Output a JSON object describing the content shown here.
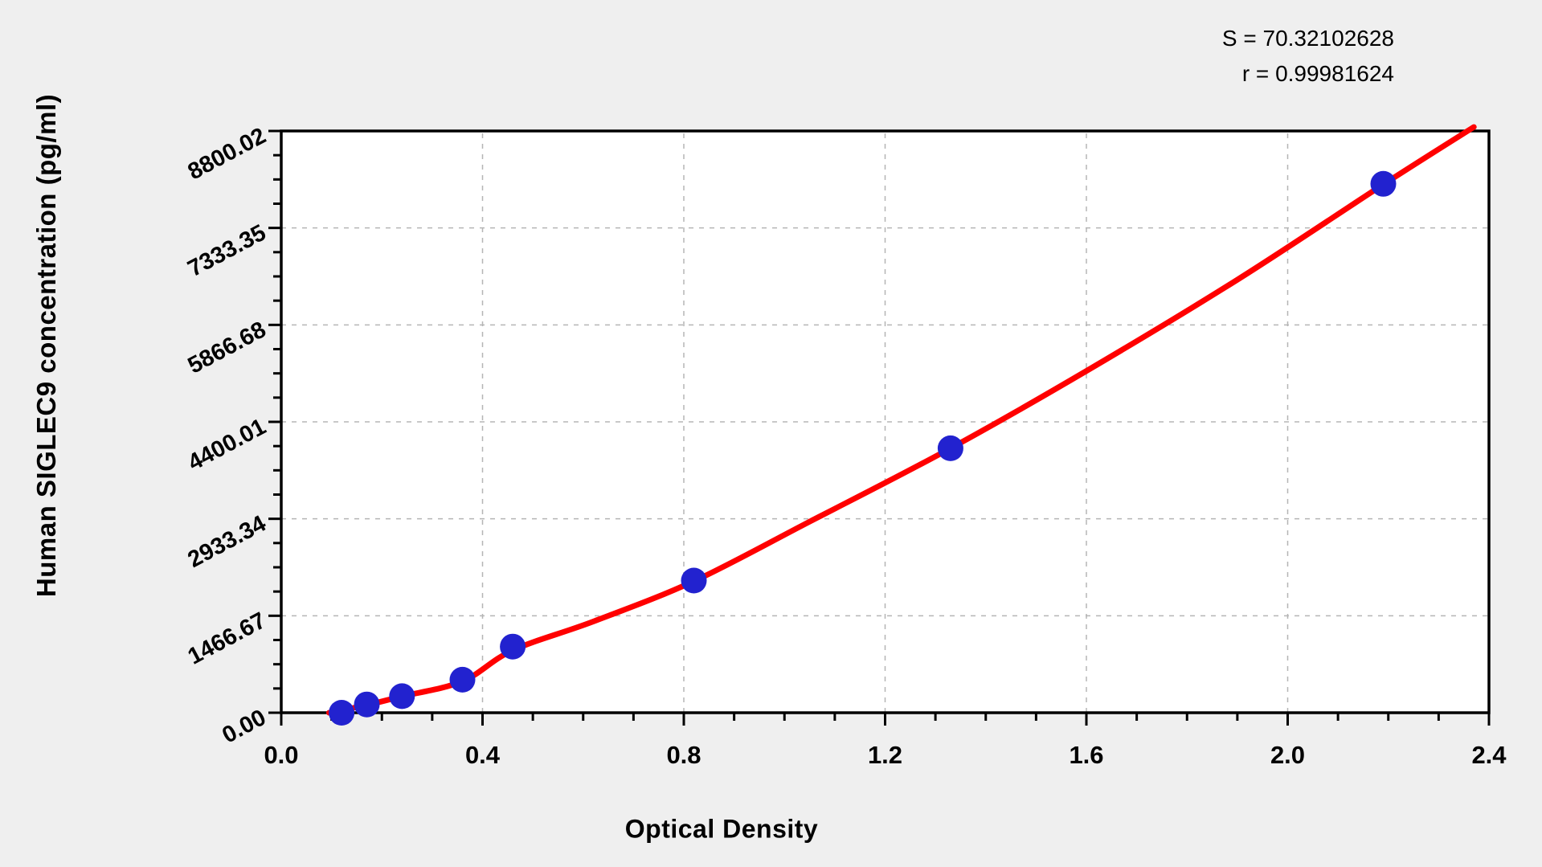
{
  "figure": {
    "stats": {
      "s_label": "S = 70.32102628",
      "r_label": "r = 0.99981624"
    },
    "colors": {
      "background": "#efefef",
      "plot_background": "#ffffff",
      "curve": "#ff0000",
      "points": "#2222cf",
      "grid": "#b5b5b5",
      "axis": "#000000",
      "text": "#000000"
    }
  },
  "chart_data": {
    "type": "scatter",
    "title": "",
    "xlabel": "Optical Density",
    "ylabel": "Human SIGLEC9 concentration (pg/ml)",
    "xlim": [
      0,
      2.4
    ],
    "ylim": [
      0,
      8800.02
    ],
    "grid": true,
    "legend": false,
    "x_tick_labels": [
      "0.0",
      "0.4",
      "0.8",
      "1.2",
      "1.6",
      "2.0",
      "2.4"
    ],
    "x_tick_values": [
      0,
      0.4,
      0.8,
      1.2,
      1.6,
      2.0,
      2.4
    ],
    "y_tick_labels": [
      "0.00",
      "1466.67",
      "2933.34",
      "4400.01",
      "5866.68",
      "7333.35",
      "8800.02"
    ],
    "y_tick_values": [
      0,
      1466.67,
      2933.34,
      4400.01,
      5866.68,
      7333.35,
      8800.02
    ],
    "x_minor_ticks_per_interval": 3,
    "y_minor_ticks_per_interval": 3,
    "annotations": [
      {
        "text": "S = 70.32102628"
      },
      {
        "text": "r = 0.99981624"
      }
    ],
    "series": [
      {
        "name": "standard-points",
        "type": "scatter",
        "color": "#2222cf",
        "x": [
          0.12,
          0.17,
          0.24,
          0.36,
          0.46,
          0.82,
          1.33,
          2.19
        ],
        "y": [
          0,
          125,
          250,
          500,
          1000,
          2000,
          4000,
          8000
        ]
      },
      {
        "name": "fitted-curve",
        "type": "line",
        "color": "#ff0000",
        "x": [
          0.095,
          0.17,
          0.24,
          0.36,
          0.46,
          0.62,
          0.82,
          1.05,
          1.33,
          1.6,
          1.9,
          2.19,
          2.37
        ],
        "y": [
          0,
          115,
          248,
          475,
          945,
          1380,
          1990,
          2890,
          4000,
          5170,
          6550,
          7990,
          8860
        ]
      }
    ]
  }
}
